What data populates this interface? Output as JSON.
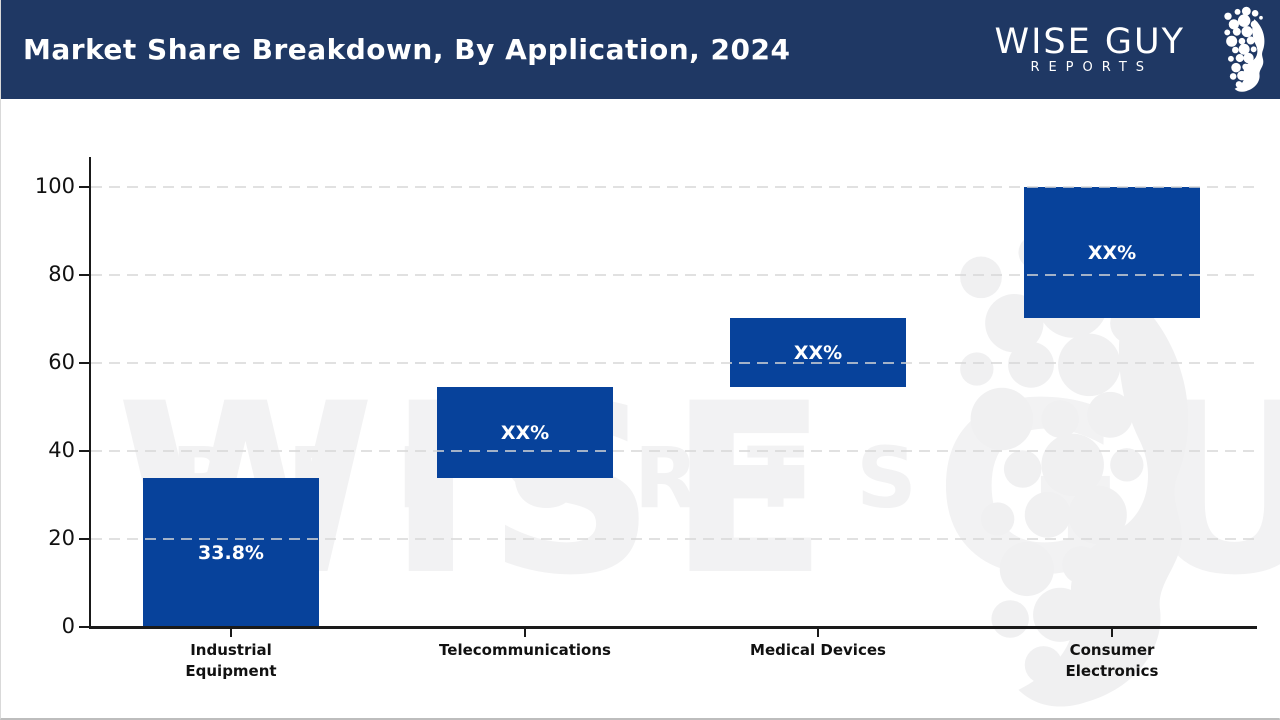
{
  "header": {
    "title": "Market Share Breakdown, By Application, 2024",
    "logo": {
      "line1": "WISE GUY",
      "line2": "REPORTS",
      "face_icon": "dotted-head-profile"
    }
  },
  "watermark": {
    "word": "WISE GUY",
    "reports": "REPORTS",
    "face_icon": "dotted-head-profile"
  },
  "chart_data": {
    "type": "bar",
    "subtype": "waterfall",
    "title": "Market Share Breakdown, By Application, 2024",
    "xlabel": "",
    "ylabel": "",
    "ylim": [
      0,
      106
    ],
    "yticks": [
      0,
      20,
      40,
      60,
      80,
      100
    ],
    "grid": true,
    "gridline_style": "dashed",
    "bar_color": "#07429b",
    "bar_label_color": "#ffffff",
    "categories": [
      "Industrial Equipment",
      "Telecommunications",
      "Medical Devices",
      "Consumer Electronics"
    ],
    "category_label_lines": [
      [
        "Industrial",
        "Equipment"
      ],
      [
        "Telecommunications"
      ],
      [
        "Medical Devices"
      ],
      [
        "Consumer",
        "Electronics"
      ]
    ],
    "segments": [
      {
        "category": "Industrial Equipment",
        "start": 0,
        "end": 33.8,
        "value": 33.8,
        "label": "33.8%"
      },
      {
        "category": "Telecommunications",
        "start": 33.8,
        "end": 54.5,
        "value": 20.7,
        "label": "XX%"
      },
      {
        "category": "Medical Devices",
        "start": 54.5,
        "end": 70.2,
        "value": 15.7,
        "label": "XX%"
      },
      {
        "category": "Consumer Electronics",
        "start": 70.2,
        "end": 100,
        "value": 29.8,
        "label": "XX%"
      }
    ]
  }
}
